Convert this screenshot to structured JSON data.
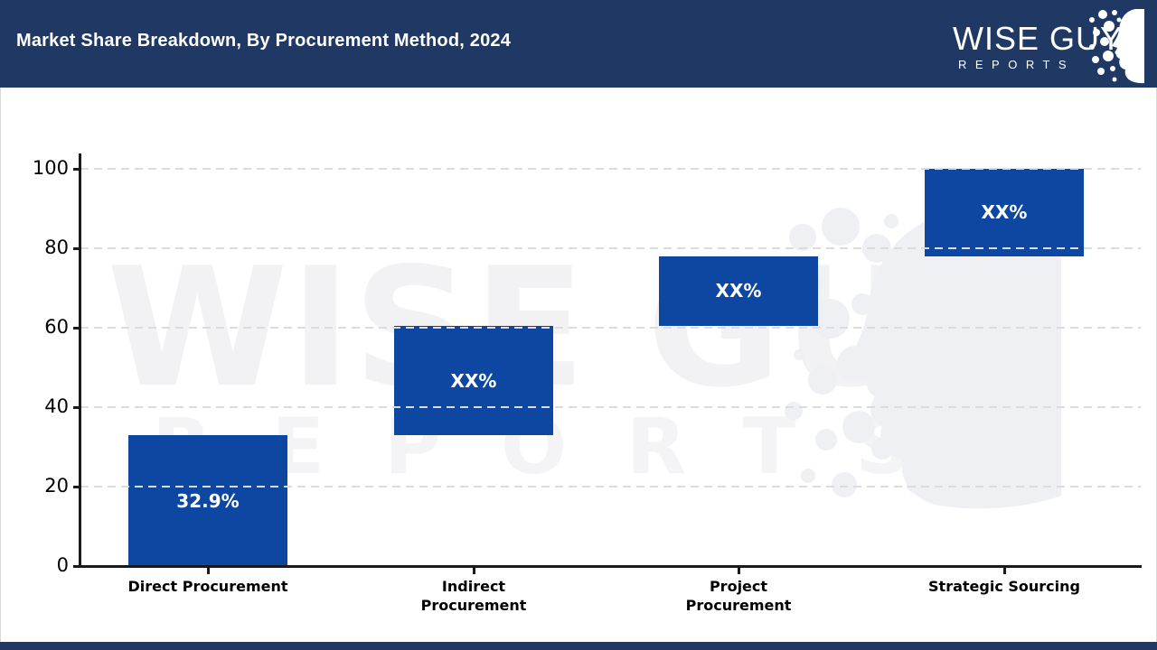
{
  "header": {
    "title": "Market Share Breakdown, By Procurement Method, 2024",
    "brand": {
      "name": "WISE GUY",
      "subtitle": "REPORTS"
    },
    "bg_color": "#1F3864"
  },
  "watermark": {
    "line1": "WISE GUY",
    "line2": "REPORTS"
  },
  "chart_data": {
    "type": "bar",
    "subtype": "waterfall",
    "title": "Market Share Breakdown, By Procurement Method, 2024",
    "categories": [
      "Direct Procurement",
      "Indirect Procurement",
      "Project Procurement",
      "Strategic Sourcing"
    ],
    "bars": [
      {
        "category": "Direct Procurement",
        "category_lines": [
          "Direct Procurement"
        ],
        "start": 0,
        "end": 32.9,
        "label": "32.9%"
      },
      {
        "category": "Indirect Procurement",
        "category_lines": [
          "Indirect",
          "Procurement"
        ],
        "start": 32.9,
        "end": 60.5,
        "label": "XX%"
      },
      {
        "category": "Project Procurement",
        "category_lines": [
          "Project",
          "Procurement"
        ],
        "start": 60.5,
        "end": 78.0,
        "label": "XX%"
      },
      {
        "category": "Strategic Sourcing",
        "category_lines": [
          "Strategic Sourcing"
        ],
        "start": 78.0,
        "end": 100,
        "label": "XX%"
      }
    ],
    "ylim": [
      0,
      100
    ],
    "yticks": [
      0,
      20,
      40,
      60,
      80,
      100
    ],
    "grid": "horizontal-dashed",
    "legend": "none",
    "bar_color": "#0D47A1",
    "bar_label_color": "#FFFFFF",
    "gridline_color": "#DCDCDC",
    "axis_color": "#1A1A1A"
  }
}
